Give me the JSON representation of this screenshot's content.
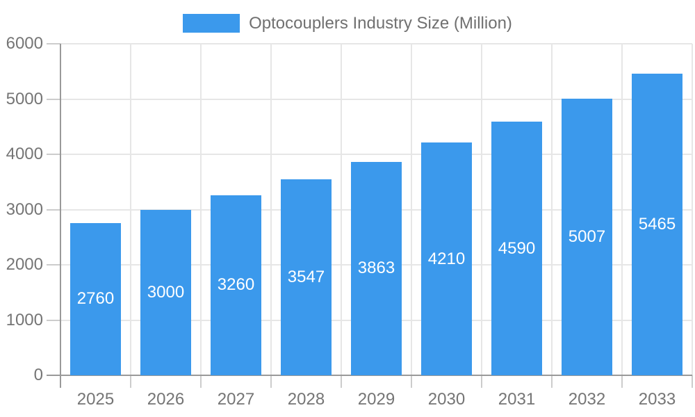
{
  "legend": {
    "label": "Optocouplers Industry Size (Million)"
  },
  "chart_data": {
    "type": "bar",
    "title": "Optocouplers Industry Size (Million)",
    "categories": [
      "2025",
      "2026",
      "2027",
      "2028",
      "2029",
      "2030",
      "2031",
      "2032",
      "2033"
    ],
    "values": [
      2760,
      3000,
      3260,
      3547,
      3863,
      4210,
      4590,
      5007,
      5465
    ],
    "xlabel": "",
    "ylabel": "",
    "ylim": [
      0,
      6000
    ],
    "yticks": [
      0,
      1000,
      2000,
      3000,
      4000,
      5000,
      6000
    ],
    "grid": true,
    "legend_position": "top-center",
    "value_label_position": "inside-middle"
  },
  "colors": {
    "bar": "#3B99EC",
    "gridline": "#E6E6E6",
    "axis": "#999999",
    "tick": "#CCCCCC",
    "axis_text": "#757575",
    "title_text": "#707070",
    "value_text": "#FFFFFF",
    "background": "#FFFFFF"
  }
}
